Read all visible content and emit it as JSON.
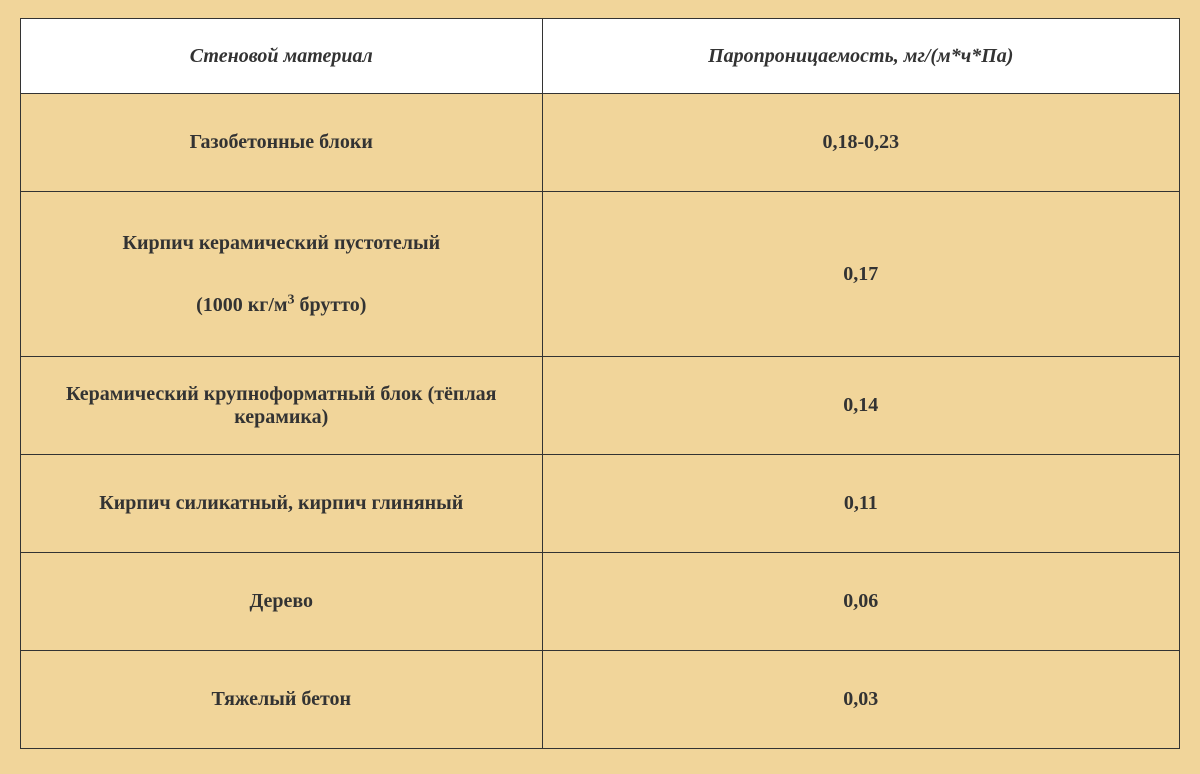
{
  "table": {
    "columns": [
      {
        "label": "Стеновой материал"
      },
      {
        "label": "Паропроницаемость, мг/(м*ч*Па)"
      }
    ],
    "rows": [
      {
        "material": "Газобетонные блоки",
        "value": "0,18-0,23",
        "height": "normal"
      },
      {
        "material": "Кирпич керамический пустотелый",
        "sub": "(1000 кг/м³ брутто)",
        "value": "0,17",
        "height": "tall"
      },
      {
        "material": "Керамический крупноформатный блок (тёплая керамика)",
        "value": "0,14",
        "height": "normal"
      },
      {
        "material": "Кирпич силикатный, кирпич глиняный",
        "value": "0,11",
        "height": "normal"
      },
      {
        "material": "Дерево",
        "value": "0,06",
        "height": "normal"
      },
      {
        "material": "Тяжелый бетон",
        "value": "0,03",
        "height": "normal"
      }
    ],
    "colors": {
      "background": "#f1d59a",
      "header_bg": "#ffffff",
      "border": "#333333",
      "text": "#333333"
    },
    "font": {
      "family": "Georgia, serif",
      "size_pt": 15,
      "weight": "bold",
      "header_style": "italic"
    }
  }
}
